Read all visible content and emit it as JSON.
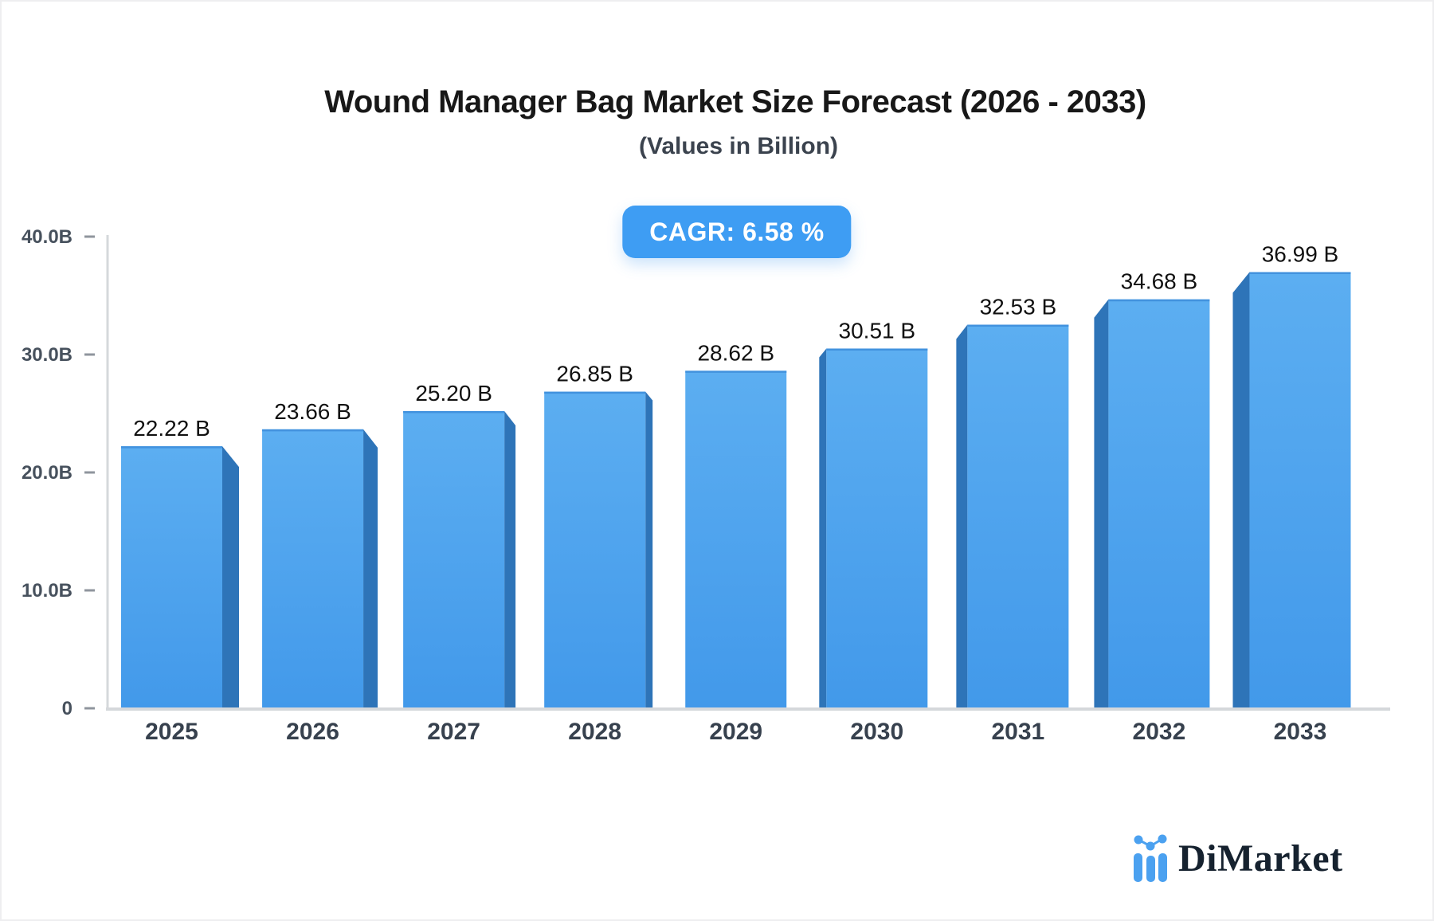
{
  "header": {
    "title": "Wound Manager Bag Market Size Forecast (2026 - 2033)",
    "subtitle": "(Values in Billion)",
    "cagr_badge": "CAGR: 6.58 %"
  },
  "chart_data": {
    "type": "bar",
    "title": "Wound Manager Bag Market Size Forecast (2026 - 2033)",
    "subtitle": "(Values in Billion)",
    "cagr_percent": 6.58,
    "categories": [
      "2025",
      "2026",
      "2027",
      "2028",
      "2029",
      "2030",
      "2031",
      "2032",
      "2033"
    ],
    "values": [
      22.22,
      23.66,
      25.2,
      26.85,
      28.62,
      30.51,
      32.53,
      34.68,
      36.99
    ],
    "value_labels": [
      "22.22 B",
      "23.66 B",
      "25.20 B",
      "26.85 B",
      "28.62 B",
      "30.51 B",
      "32.53 B",
      "34.68 B",
      "36.99 B"
    ],
    "unit": "Billion",
    "xlabel": "",
    "ylabel": "",
    "ylim": [
      0,
      40
    ],
    "yticks": [
      0,
      10,
      20,
      30,
      40
    ],
    "ytick_labels": [
      "0",
      "10.0B",
      "20.0B",
      "30.0B",
      "40.0B"
    ],
    "grid": false,
    "legend": "none",
    "bar_style": "3d-extruded, perspective toward center bar",
    "colors": {
      "bar_face_top": "#5CAEF1",
      "bar_face_bottom": "#4299EA",
      "bar_top_edge": "#4292DE",
      "bar_side": "#2E74B8",
      "badge_bg": "#3E9DF3",
      "badge_text": "#FFFFFF",
      "axis_line": "#D5D8DB",
      "tick_mark": "#8F959D",
      "ytick_label": "#47515D",
      "xtick_label": "#37414E",
      "value_label": "#111111",
      "title": "#181818",
      "subtitle": "#3B434E"
    }
  },
  "logo": {
    "text": "DiMarket",
    "icon": "mini-bar-line-chart-icon",
    "icon_color": "#4BA1F0",
    "text_color": "#16222F"
  }
}
